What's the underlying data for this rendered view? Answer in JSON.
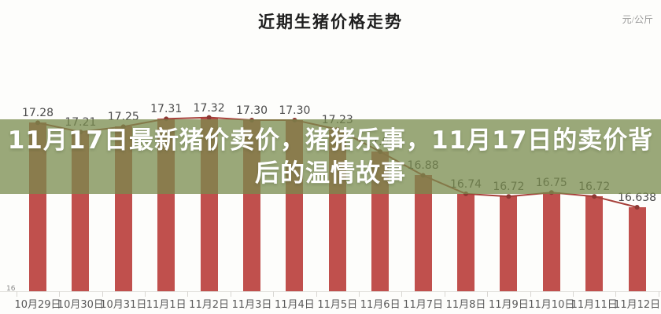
{
  "header": {
    "title": "近期生猪价格走势",
    "unit": "元/公斤"
  },
  "banner": {
    "line1": "11月17日最新猪价卖价，猪猪乐事，11月17日的卖价背",
    "line2": "后的温情故事"
  },
  "axis": {
    "y_tick": "16"
  },
  "chart_data": {
    "type": "bar",
    "line_overlay": true,
    "title": "近期生猪价格走势",
    "unit": "元/公斤",
    "categories": [
      "10月29日",
      "10月30日",
      "10月31日",
      "11月1日",
      "11月2日",
      "11月3日",
      "11月4日",
      "11月5日",
      "11月6日",
      "11月7日",
      "11月8日",
      "11月9日",
      "11月10日",
      "11月11日",
      "11月12日"
    ],
    "values": [
      17.28,
      17.21,
      17.25,
      17.31,
      17.32,
      17.3,
      17.3,
      17.23,
      17.06,
      16.88,
      16.74,
      16.72,
      16.75,
      16.72,
      16.638
    ],
    "point_labels": [
      "17.28",
      "17.21",
      "17.25",
      "17.31",
      "17.32",
      "17.30",
      "17.30",
      "17.23",
      "17.06",
      "16.88",
      "16.74",
      "16.72",
      "16.75",
      "16.72",
      "16.638"
    ],
    "ylim": [
      16,
      18
    ],
    "visible_y_ticks": [
      "16"
    ],
    "grid": "none",
    "legend": "none",
    "colors": {
      "bar": "#c0504d",
      "line": "#a6403a",
      "marker": "#8c3833",
      "value_label": "#4a4a4a",
      "axis": "#e2e0dc",
      "banner_bg": "rgba(120,139,78,0.75)",
      "banner_text": "#ffffff"
    }
  }
}
